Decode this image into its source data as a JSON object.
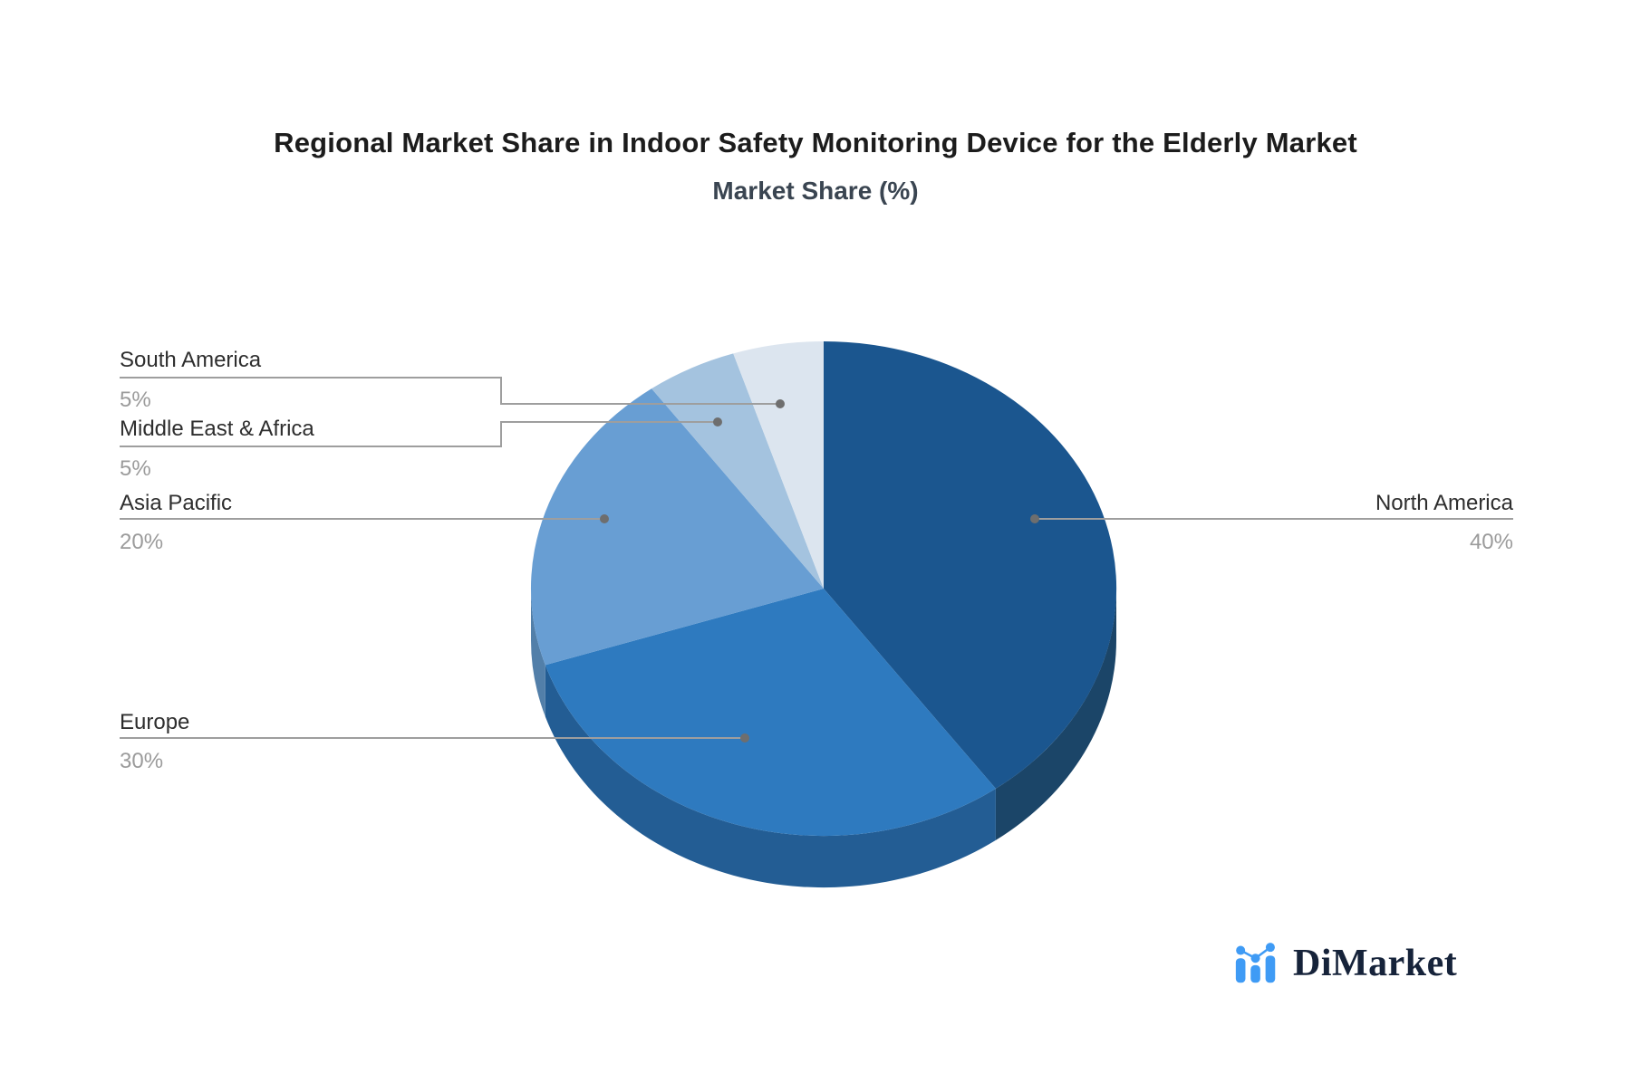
{
  "header": {
    "title": "Regional Market Share in Indoor Safety Monitoring Device for the Elderly Market",
    "subtitle": "Market Share (%)"
  },
  "chart_data": {
    "type": "pie",
    "style": "3d",
    "title": "Regional Market Share in Indoor Safety Monitoring Device for the Elderly Market",
    "subtitle": "Market Share (%)",
    "unit": "%",
    "direction": "clockwise",
    "start_angle_deg": 0,
    "legend_position": "callout-labels",
    "series": [
      {
        "label": "North America",
        "value": 40,
        "pct": "40%",
        "color": "#1B568F",
        "side_color": "#1B4568"
      },
      {
        "label": "Europe",
        "value": 30,
        "pct": "30%",
        "color": "#2E7ABF",
        "side_color": "#235D94"
      },
      {
        "label": "Asia Pacific",
        "value": 20,
        "pct": "20%",
        "color": "#689ED3",
        "side_color": "#527FA9"
      },
      {
        "label": "Middle East & Africa",
        "value": 5,
        "pct": "5%",
        "color": "#A4C3DF",
        "side_color": "#84A0B8"
      },
      {
        "label": "South America",
        "value": 5,
        "pct": "5%",
        "color": "#DCE5EF",
        "side_color": "#B5BFCC"
      }
    ]
  },
  "callout_style": {
    "line_color": "#9E9E9E",
    "dot_color": "#6E6E6E",
    "name_color": "#2E2E2E",
    "value_color": "#9B9B9B"
  },
  "logo": {
    "text": "DiMarket",
    "icon": "bar-chart-logo-icon",
    "icon_color": "#3F9BF5",
    "text_color": "#16233A"
  }
}
